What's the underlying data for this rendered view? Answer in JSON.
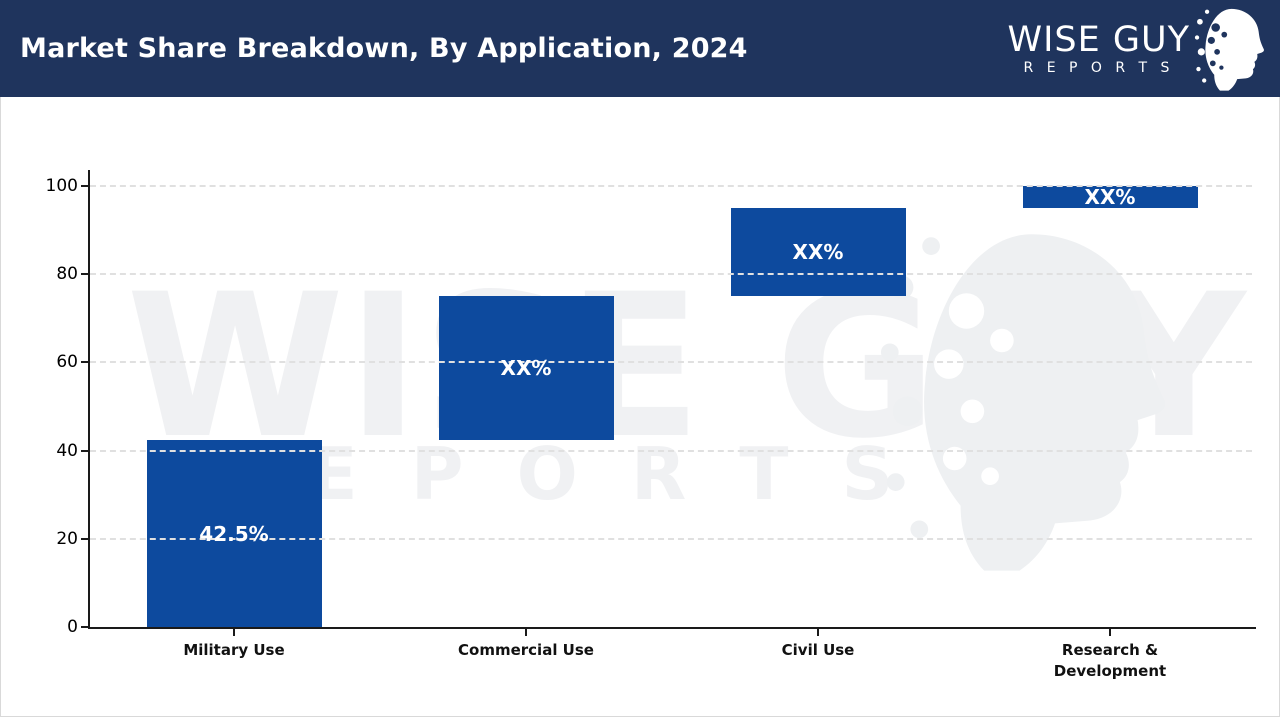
{
  "header": {
    "title": "Market Share Breakdown, By Application, 2024",
    "logo": {
      "name_line": "WISE GUY",
      "sub_line": "R E P O R T S"
    }
  },
  "watermark": {
    "name_line": "WISE GUY",
    "sub_line": "R E P O R T S"
  },
  "colors": {
    "header_bg": "#1f345d",
    "bar": "#0d4a9e",
    "axis": "#1a1a1a",
    "gridline": "#e0e0e0",
    "watermark": "#f0f1f3",
    "frame_border": "#d9d9d9",
    "bar_label": "#ffffff"
  },
  "chart_data": {
    "type": "bar",
    "variant": "waterfall",
    "title": "Market Share Breakdown, By Application, 2024",
    "xlabel": "",
    "ylabel": "",
    "categories": [
      "Military Use",
      "Commercial Use",
      "Civil Use",
      "Research &\nDevelopment"
    ],
    "segments": [
      {
        "category": "Military Use",
        "start": 0,
        "end": 42.5,
        "label": "42.5%"
      },
      {
        "category": "Commercial Use",
        "start": 42.5,
        "end": 75,
        "label": "XX%"
      },
      {
        "category": "Civil Use",
        "start": 75,
        "end": 95,
        "label": "XX%"
      },
      {
        "category": "Research & Development",
        "start": 95,
        "end": 100,
        "label": "XX%"
      }
    ],
    "ylim": [
      0,
      100
    ],
    "yticks": [
      0,
      20,
      40,
      60,
      80,
      100
    ],
    "grid": {
      "axis": "y",
      "style": "dashed",
      "drawn_above_bars": true
    },
    "legend": "none",
    "bar_color": "#0d4a9e",
    "bar_label_color": "#ffffff"
  }
}
